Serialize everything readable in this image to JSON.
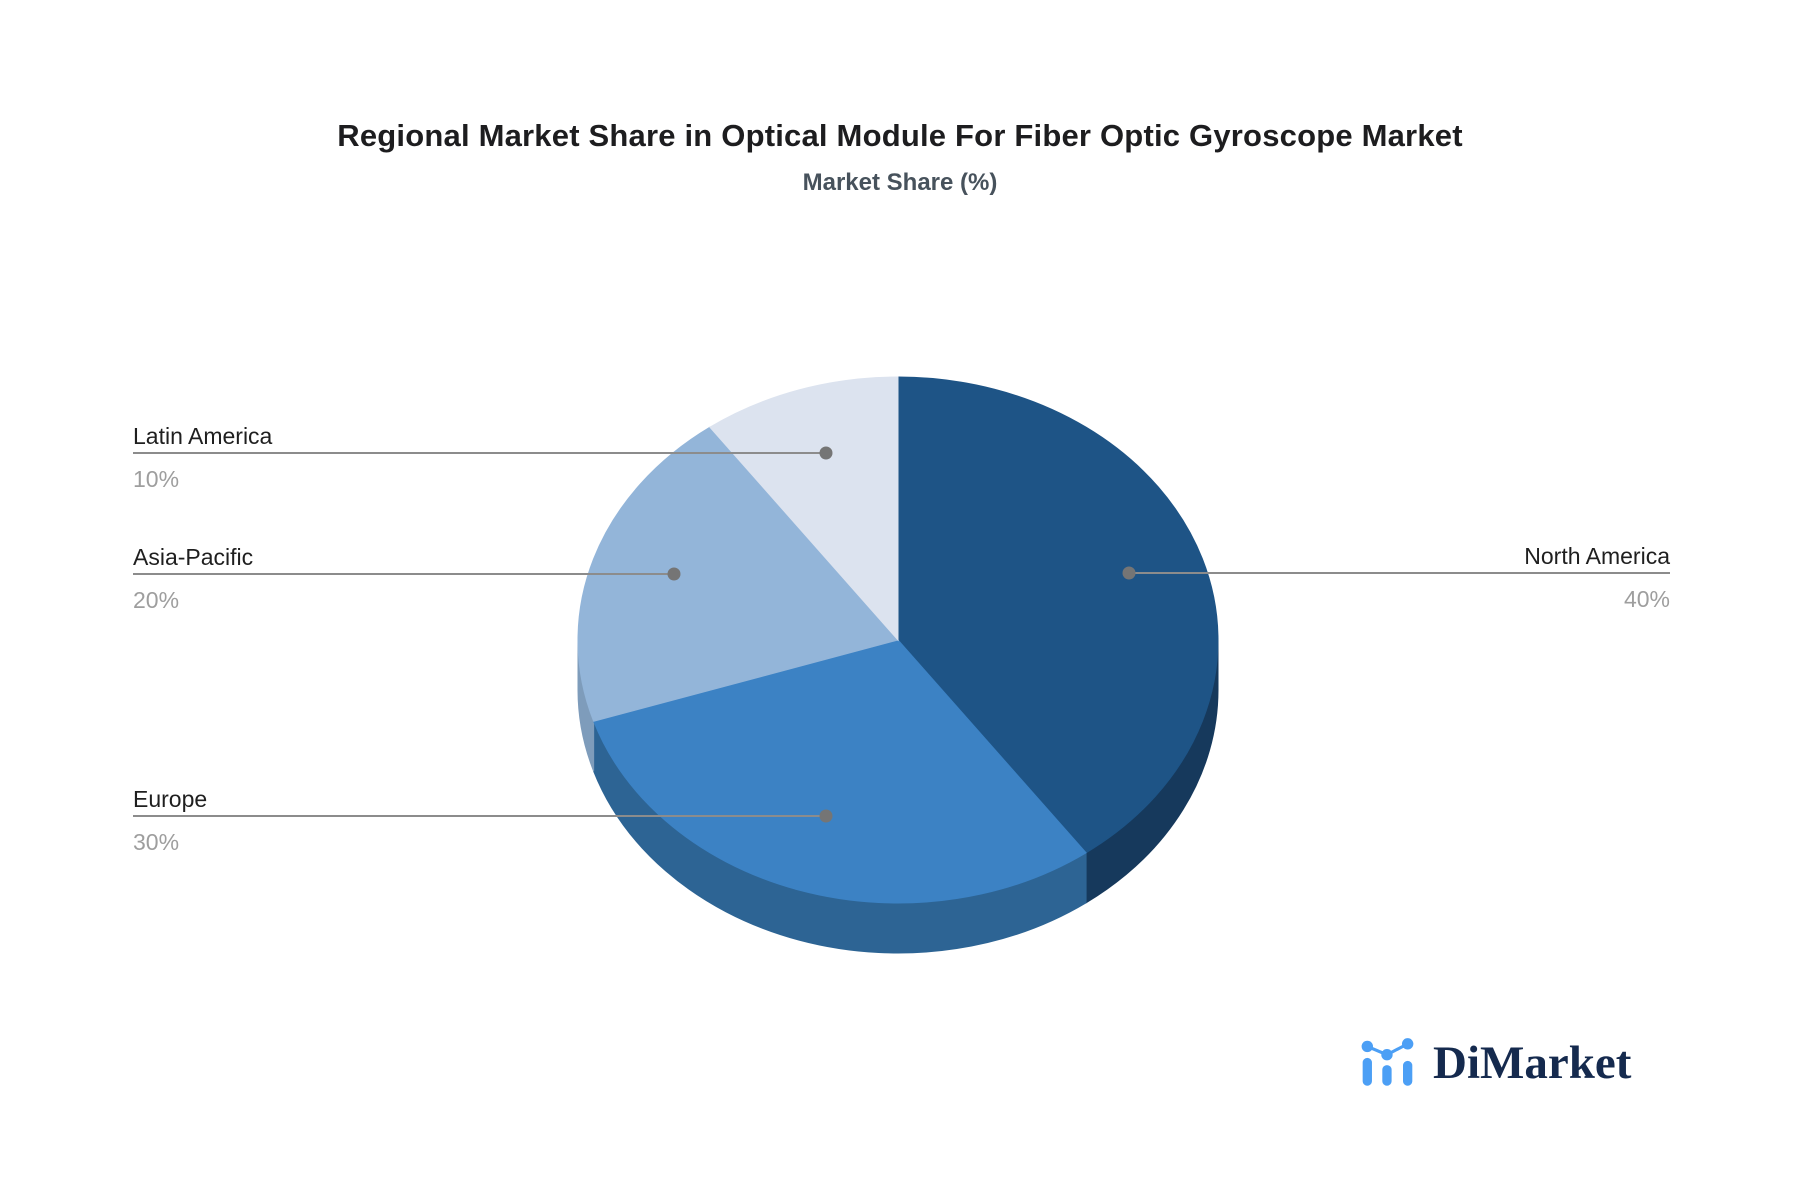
{
  "header": {
    "title": "Regional Market Share in Optical Module For Fiber Optic Gyroscope Market",
    "subtitle": "Market Share (%)"
  },
  "chart_data": {
    "type": "pie",
    "style": "3d",
    "title": "Regional Market Share in Optical Module For Fiber Optic Gyroscope Market",
    "subtitle": "Market Share (%)",
    "unit": "%",
    "categories": [
      "North America",
      "Europe",
      "Asia-Pacific",
      "Latin America"
    ],
    "values": [
      40,
      30,
      20,
      10
    ],
    "labels": [
      "40%",
      "30%",
      "20%",
      "10%"
    ],
    "colors": [
      "#1E5486",
      "#3C82C4",
      "#93B5D9",
      "#DCE3EF"
    ],
    "side_colors": [
      "#16395C",
      "#2D6494",
      "#7E9CBB",
      "#C9D2E0"
    ],
    "leader_line_color": "#8C8C8C",
    "leader_dot_color": "#757575",
    "label_color": "#1f1f1f",
    "percent_color": "#9e9e9e",
    "legend": "none",
    "start_angle_deg": 0,
    "direction": "clockwise"
  },
  "branding": {
    "logo_text": "DiMarket",
    "logo_icon": "bar-line-chart-icon",
    "logo_text_color": "#152a4e",
    "logo_icon_color": "#4C9FF5"
  }
}
